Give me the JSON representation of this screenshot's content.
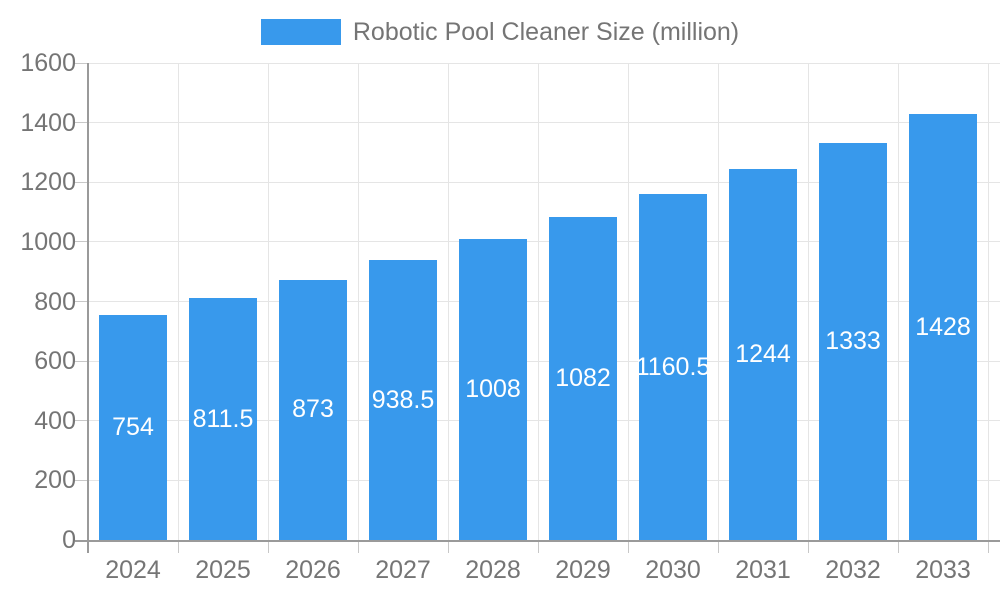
{
  "chart_data": {
    "type": "bar",
    "title": "Robotic Pool Cleaner Size (million)",
    "legend": {
      "label": "Robotic Pool Cleaner Size (million)",
      "position": "top-center"
    },
    "categories": [
      "2024",
      "2025",
      "2026",
      "2027",
      "2028",
      "2029",
      "2030",
      "2031",
      "2032",
      "2033"
    ],
    "series": [
      {
        "name": "Robotic Pool Cleaner Size (million)",
        "values": [
          754,
          811.5,
          873,
          938.5,
          1008,
          1082,
          1160.5,
          1244,
          1333,
          1428
        ]
      }
    ],
    "value_labels": [
      "754",
      "811.5",
      "873",
      "938.5",
      "1008",
      "1082",
      "1160.5",
      "1244",
      "1333",
      "1428"
    ],
    "value_label_position": "inside-center",
    "xlabel": "",
    "ylabel": "",
    "ylim": [
      0,
      1600
    ],
    "yticks": [
      0,
      200,
      400,
      600,
      800,
      1000,
      1200,
      1400,
      1600
    ],
    "grid": true,
    "colors": {
      "bar": "#3899ec",
      "grid": "#e5e5e5",
      "tick": "#c8c8c8",
      "axis": "#9a9a9a",
      "text": "#757575",
      "value_label": "#ffffff",
      "background": "#ffffff"
    }
  }
}
